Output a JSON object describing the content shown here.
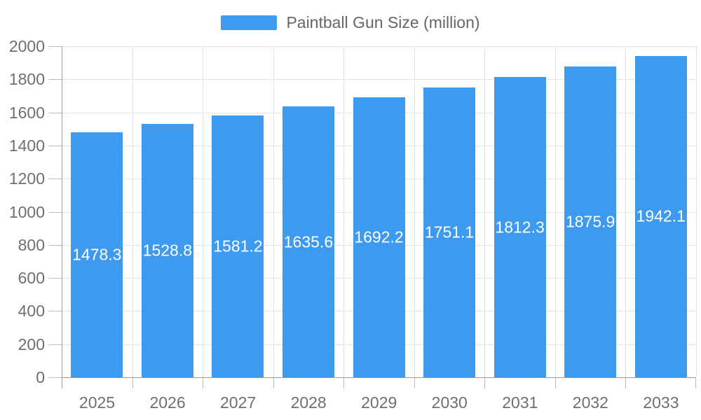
{
  "chart_data": {
    "type": "bar",
    "title": "",
    "legend": {
      "label": "Paintball Gun Size (million)",
      "position": "top"
    },
    "categories": [
      "2025",
      "2026",
      "2027",
      "2028",
      "2029",
      "2030",
      "2031",
      "2032",
      "2033"
    ],
    "series": [
      {
        "name": "Paintball Gun Size (million)",
        "values": [
          1478.3,
          1528.8,
          1581.2,
          1635.6,
          1692.2,
          1751.1,
          1812.3,
          1875.9,
          1942.1
        ]
      }
    ],
    "value_labels": [
      "1478.3",
      "1528.8",
      "1581.2",
      "1635.6",
      "1692.2",
      "1751.1",
      "1812.3",
      "1875.9",
      "1942.1"
    ],
    "xlabel": "",
    "ylabel": "",
    "ylim": [
      0,
      2000
    ],
    "y_ticks": [
      0,
      200,
      400,
      600,
      800,
      1000,
      1200,
      1400,
      1600,
      1800,
      2000
    ],
    "grid": true,
    "legend_position": "top-center",
    "colors": {
      "bar": "#3E9AEF",
      "grid": "#E3E3E3",
      "axis": "#9A9A9A",
      "tick": "#BEBEBE",
      "label": "#6F6F6F",
      "value_label": "#FFFFFF",
      "legend_text": "#666666",
      "background": "#FFFFFF"
    }
  }
}
